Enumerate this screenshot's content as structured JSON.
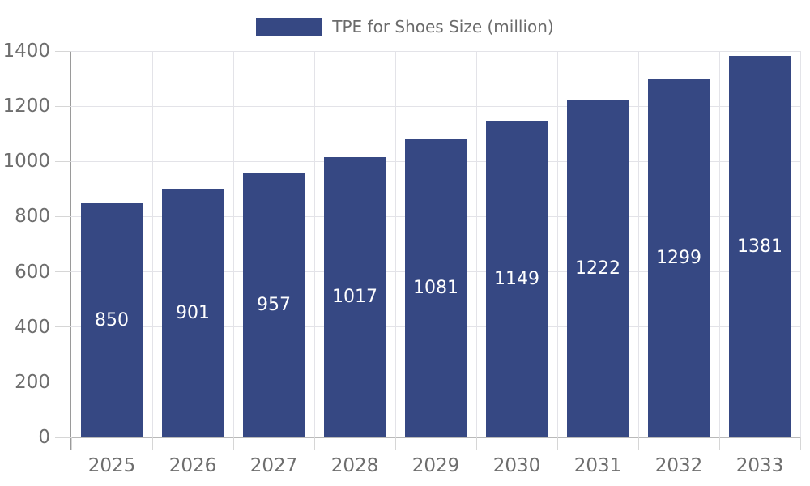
{
  "chart_data": {
    "type": "bar",
    "title": "",
    "legend": [
      "TPE for Shoes Size (million)"
    ],
    "legend_position": "top-center",
    "categories": [
      "2025",
      "2026",
      "2027",
      "2028",
      "2029",
      "2030",
      "2031",
      "2032",
      "2033"
    ],
    "series": [
      {
        "name": "TPE for Shoes Size (million)",
        "values": [
          850,
          901,
          957,
          1017,
          1081,
          1149,
          1222,
          1299,
          1381
        ]
      }
    ],
    "xlabel": "",
    "ylabel": "",
    "ylim": [
      0,
      1400
    ],
    "ytick_interval": 200,
    "yticks": [
      0,
      200,
      400,
      600,
      800,
      1000,
      1200,
      1400
    ],
    "grid": true,
    "bar_labels_inside": true
  },
  "colors": {
    "bar": "#364883",
    "bar_label": "#ffffff",
    "axis_label": "#6e6e6e",
    "legend_text": "#6b6b6b",
    "grid_line": "#e3e3e8",
    "axis_line_y": "#9a9a9a",
    "axis_line_x": "#b9b9b9",
    "tick": "#d6d6d6",
    "background": "#ffffff"
  }
}
